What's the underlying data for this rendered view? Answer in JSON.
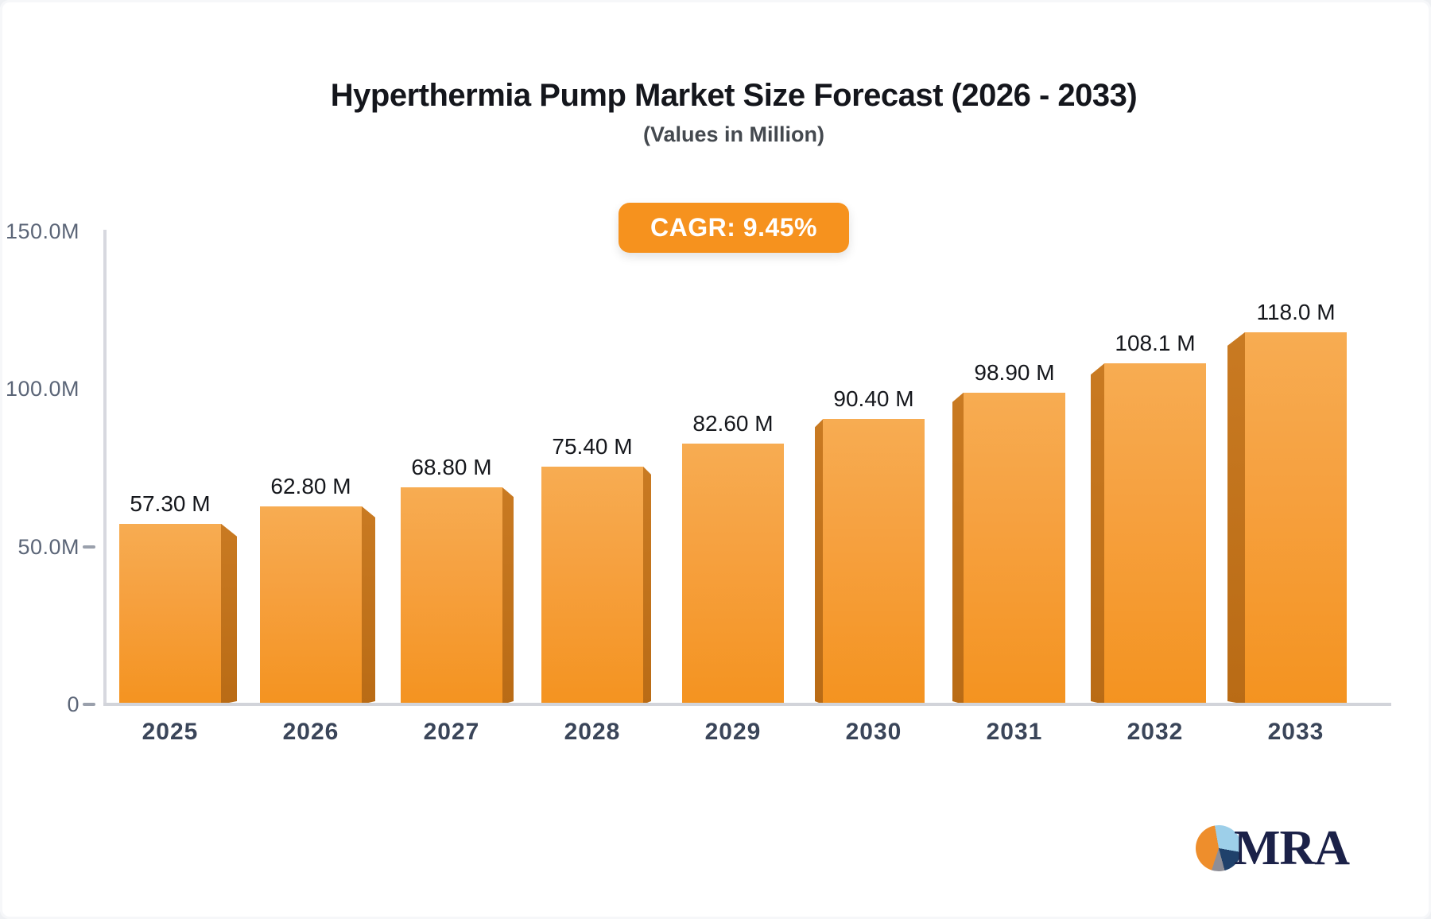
{
  "header": {
    "title": "Hyperthermia Pump Market Size Forecast (2026 - 2033)",
    "subtitle": "(Values in Million)",
    "cagr_badge": "CAGR: 9.45%"
  },
  "chart_data": {
    "type": "bar",
    "title": "Hyperthermia Pump Market Size Forecast (2026 - 2033)",
    "subtitle": "(Values in Million)",
    "unit": "Million",
    "cagr_percent": 9.45,
    "categories": [
      "2025",
      "2026",
      "2027",
      "2028",
      "2029",
      "2030",
      "2031",
      "2032",
      "2033"
    ],
    "values": [
      57.3,
      62.8,
      68.8,
      75.4,
      82.6,
      90.4,
      98.9,
      108.1,
      118.0
    ],
    "value_labels": [
      "57.30 M",
      "62.80 M",
      "68.80 M",
      "75.40 M",
      "82.60 M",
      "90.40 M",
      "98.90 M",
      "108.1 M",
      "118.0 M"
    ],
    "y_ticks": [
      {
        "label": "150.0M",
        "value": 150,
        "dash": false
      },
      {
        "label": "100.0M",
        "value": 100,
        "dash": false
      },
      {
        "label": "50.0M",
        "value": 50,
        "dash": true
      },
      {
        "label": "0",
        "value": 0,
        "dash": true
      }
    ],
    "ylim": [
      0,
      150
    ],
    "xlabel": "",
    "ylabel": "",
    "grid": false,
    "legend": false,
    "style_3d": true,
    "bar_color": "#F5981F",
    "bar_side_color": "#BE6F19",
    "axis_color": "#D5D6DD",
    "accent_color": "#F6921E"
  },
  "logo": {
    "text": "MRA",
    "icon": "pie-chart",
    "text_color": "#1B2148",
    "pie_colors": [
      "#EE8E2C",
      "#9DCFE9",
      "#1F416B",
      "#8E8E96"
    ]
  }
}
